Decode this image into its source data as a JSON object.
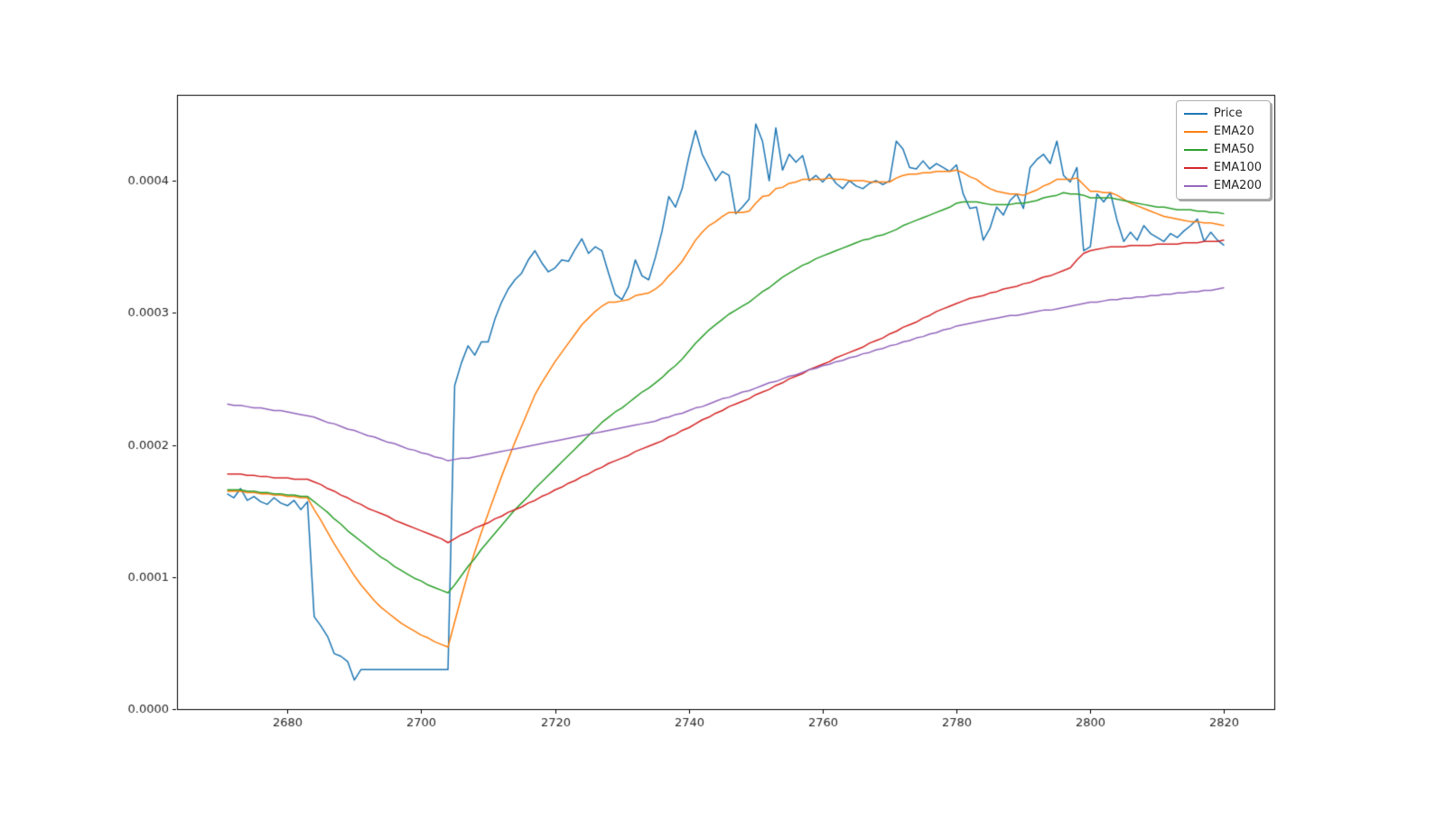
{
  "figure": {
    "background": "#ffffff",
    "frame_color": "#000000",
    "tick_label_color": "#262626"
  },
  "chart_data": {
    "type": "line",
    "title": "",
    "xlabel": "",
    "ylabel": "",
    "grid": false,
    "legend_position": "upper right",
    "xlim": [
      2663.5,
      2827.5
    ],
    "ylim": [
      0,
      0.000465
    ],
    "x_ticks": [
      2680,
      2700,
      2720,
      2740,
      2760,
      2780,
      2800,
      2820
    ],
    "y_ticks": [
      {
        "value": 0.0,
        "label": "0.0000"
      },
      {
        "value": 0.0001,
        "label": "0.0001"
      },
      {
        "value": 0.0002,
        "label": "0.0002"
      },
      {
        "value": 0.0003,
        "label": "0.0003"
      },
      {
        "value": 0.0004,
        "label": "0.0004"
      }
    ],
    "x_start": 2671,
    "x_step": 1,
    "series": [
      {
        "name": "Price",
        "color": "#1f77b4",
        "values": [
          0.000163,
          0.00016,
          0.000167,
          0.000158,
          0.000161,
          0.000157,
          0.000155,
          0.00016,
          0.000156,
          0.000154,
          0.000158,
          0.000151,
          0.000157,
          7e-05,
          6.3e-05,
          5.5e-05,
          4.2e-05,
          4e-05,
          3.6e-05,
          2.2e-05,
          3e-05,
          3e-05,
          3e-05,
          3e-05,
          3e-05,
          3e-05,
          3e-05,
          3e-05,
          3e-05,
          3e-05,
          3e-05,
          3e-05,
          3e-05,
          3e-05,
          0.000245,
          0.000262,
          0.000275,
          0.000268,
          0.000278,
          0.000278,
          0.000295,
          0.000308,
          0.000318,
          0.000325,
          0.00033,
          0.00034,
          0.000347,
          0.000338,
          0.000331,
          0.000334,
          0.00034,
          0.000339,
          0.000348,
          0.000356,
          0.000345,
          0.00035,
          0.000347,
          0.00033,
          0.000314,
          0.00031,
          0.00032,
          0.00034,
          0.000328,
          0.000325,
          0.000342,
          0.000362,
          0.000388,
          0.00038,
          0.000394,
          0.000418,
          0.000438,
          0.00042,
          0.00041,
          0.0004,
          0.000407,
          0.000404,
          0.000375,
          0.00038,
          0.000386,
          0.000443,
          0.00043,
          0.0004,
          0.00044,
          0.000408,
          0.00042,
          0.000414,
          0.000419,
          0.0004,
          0.000404,
          0.000399,
          0.000405,
          0.000398,
          0.000394,
          0.0004,
          0.000396,
          0.000394,
          0.000398,
          0.0004,
          0.000397,
          0.0004,
          0.00043,
          0.000424,
          0.00041,
          0.000409,
          0.000415,
          0.000409,
          0.000413,
          0.00041,
          0.000407,
          0.000412,
          0.00039,
          0.000379,
          0.00038,
          0.000355,
          0.000364,
          0.00038,
          0.000374,
          0.000385,
          0.00039,
          0.000379,
          0.00041,
          0.000416,
          0.00042,
          0.000413,
          0.00043,
          0.000404,
          0.000399,
          0.00041,
          0.000347,
          0.00035,
          0.00039,
          0.000384,
          0.000391,
          0.00037,
          0.000354,
          0.000361,
          0.000355,
          0.000366,
          0.00036,
          0.000357,
          0.000354,
          0.00036,
          0.000357,
          0.000362,
          0.000366,
          0.000371,
          0.000354,
          0.000361,
          0.000355,
          0.000351
        ]
      },
      {
        "name": "EMA20",
        "color": "#ff7f0e",
        "values": [
          0.000165,
          0.000165,
          0.000165,
          0.000164,
          0.000164,
          0.000163,
          0.000163,
          0.000162,
          0.000162,
          0.000161,
          0.000161,
          0.00016,
          0.00016,
          0.000151,
          0.000143,
          0.000134,
          0.000125,
          0.000117,
          0.000109,
          0.000101,
          9.4e-05,
          8.8e-05,
          8.2e-05,
          7.7e-05,
          7.3e-05,
          6.9e-05,
          6.5e-05,
          6.2e-05,
          5.9e-05,
          5.6e-05,
          5.4e-05,
          5.1e-05,
          4.9e-05,
          4.7e-05,
          6.6e-05,
          8.5e-05,
          0.000103,
          0.000119,
          0.000134,
          0.000148,
          0.000162,
          0.000176,
          0.000189,
          0.000202,
          0.000214,
          0.000226,
          0.000238,
          0.000247,
          0.000255,
          0.000263,
          0.00027,
          0.000277,
          0.000284,
          0.000291,
          0.000296,
          0.000301,
          0.000305,
          0.000308,
          0.000308,
          0.000309,
          0.00031,
          0.000313,
          0.000314,
          0.000315,
          0.000318,
          0.000322,
          0.000328,
          0.000333,
          0.000339,
          0.000347,
          0.000355,
          0.000361,
          0.000366,
          0.000369,
          0.000373,
          0.000376,
          0.000376,
          0.000376,
          0.000377,
          0.000383,
          0.000388,
          0.000389,
          0.000394,
          0.000395,
          0.000398,
          0.000399,
          0.000401,
          0.000401,
          0.000401,
          0.000401,
          0.000402,
          0.000401,
          0.000401,
          0.0004,
          0.0004,
          0.0004,
          0.000399,
          0.000399,
          0.000399,
          0.000399,
          0.000402,
          0.000404,
          0.000405,
          0.000405,
          0.000406,
          0.000406,
          0.000407,
          0.000407,
          0.000407,
          0.000408,
          0.000406,
          0.000403,
          0.000401,
          0.000397,
          0.000394,
          0.000392,
          0.000391,
          0.00039,
          0.00039,
          0.000389,
          0.000391,
          0.000393,
          0.000396,
          0.000398,
          0.000401,
          0.000401,
          0.000401,
          0.000402,
          0.000397,
          0.000392,
          0.000392,
          0.000391,
          0.000391,
          0.000389,
          0.000386,
          0.000383,
          0.000381,
          0.000379,
          0.000377,
          0.000375,
          0.000373,
          0.000372,
          0.000371,
          0.00037,
          0.000369,
          0.000369,
          0.000368,
          0.000368,
          0.000367,
          0.000366
        ]
      },
      {
        "name": "EMA50",
        "color": "#2ca02c",
        "values": [
          0.000166,
          0.000166,
          0.000166,
          0.000165,
          0.000165,
          0.000164,
          0.000164,
          0.000163,
          0.000163,
          0.000162,
          0.000162,
          0.000161,
          0.000161,
          0.000157,
          0.000153,
          0.000149,
          0.000144,
          0.00014,
          0.000135,
          0.000131,
          0.000127,
          0.000123,
          0.000119,
          0.000115,
          0.000112,
          0.000108,
          0.000105,
          0.000102,
          9.9e-05,
          9.7e-05,
          9.4e-05,
          9.2e-05,
          9e-05,
          8.8e-05,
          9.4e-05,
          0.000101,
          0.000108,
          0.000114,
          0.000121,
          0.000127,
          0.000133,
          0.000139,
          0.000145,
          0.000151,
          0.000156,
          0.000161,
          0.000167,
          0.000172,
          0.000177,
          0.000182,
          0.000187,
          0.000192,
          0.000197,
          0.000202,
          0.000207,
          0.000212,
          0.000217,
          0.000221,
          0.000225,
          0.000228,
          0.000232,
          0.000236,
          0.00024,
          0.000243,
          0.000247,
          0.000251,
          0.000256,
          0.00026,
          0.000265,
          0.000271,
          0.000277,
          0.000282,
          0.000287,
          0.000291,
          0.000295,
          0.000299,
          0.000302,
          0.000305,
          0.000308,
          0.000312,
          0.000316,
          0.000319,
          0.000323,
          0.000327,
          0.00033,
          0.000333,
          0.000336,
          0.000338,
          0.000341,
          0.000343,
          0.000345,
          0.000347,
          0.000349,
          0.000351,
          0.000353,
          0.000355,
          0.000356,
          0.000358,
          0.000359,
          0.000361,
          0.000363,
          0.000366,
          0.000368,
          0.00037,
          0.000372,
          0.000374,
          0.000376,
          0.000378,
          0.00038,
          0.000383,
          0.000384,
          0.000384,
          0.000384,
          0.000383,
          0.000382,
          0.000382,
          0.000382,
          0.000382,
          0.000383,
          0.000383,
          0.000384,
          0.000385,
          0.000387,
          0.000388,
          0.000389,
          0.000391,
          0.00039,
          0.00039,
          0.000389,
          0.000387,
          0.000387,
          0.000387,
          0.000387,
          0.000386,
          0.000385,
          0.000384,
          0.000383,
          0.000382,
          0.000381,
          0.00038,
          0.00038,
          0.000379,
          0.000378,
          0.000378,
          0.000378,
          0.000377,
          0.000377,
          0.000376,
          0.000376,
          0.000375
        ]
      },
      {
        "name": "EMA100",
        "color": "#d62728",
        "values": [
          0.000178,
          0.000178,
          0.000178,
          0.000177,
          0.000177,
          0.000176,
          0.000176,
          0.000175,
          0.000175,
          0.000175,
          0.000174,
          0.000174,
          0.000174,
          0.000172,
          0.00017,
          0.000167,
          0.000165,
          0.000162,
          0.00016,
          0.000157,
          0.000155,
          0.000152,
          0.00015,
          0.000148,
          0.000146,
          0.000143,
          0.000141,
          0.000139,
          0.000137,
          0.000135,
          0.000133,
          0.000131,
          0.000129,
          0.000126,
          0.000129,
          0.000132,
          0.000134,
          0.000137,
          0.000139,
          0.000141,
          0.000144,
          0.000146,
          0.000149,
          0.000151,
          0.000153,
          0.000156,
          0.000158,
          0.000161,
          0.000163,
          0.000166,
          0.000168,
          0.000171,
          0.000173,
          0.000176,
          0.000178,
          0.000181,
          0.000183,
          0.000186,
          0.000188,
          0.00019,
          0.000192,
          0.000195,
          0.000197,
          0.000199,
          0.000201,
          0.000203,
          0.000206,
          0.000208,
          0.000211,
          0.000213,
          0.000216,
          0.000219,
          0.000221,
          0.000224,
          0.000226,
          0.000229,
          0.000231,
          0.000233,
          0.000235,
          0.000238,
          0.00024,
          0.000242,
          0.000245,
          0.000247,
          0.00025,
          0.000252,
          0.000254,
          0.000257,
          0.000259,
          0.000261,
          0.000263,
          0.000266,
          0.000268,
          0.00027,
          0.000272,
          0.000274,
          0.000277,
          0.000279,
          0.000281,
          0.000284,
          0.000286,
          0.000289,
          0.000291,
          0.000293,
          0.000296,
          0.000298,
          0.000301,
          0.000303,
          0.000305,
          0.000307,
          0.000309,
          0.000311,
          0.000312,
          0.000313,
          0.000315,
          0.000316,
          0.000318,
          0.000319,
          0.00032,
          0.000322,
          0.000323,
          0.000325,
          0.000327,
          0.000328,
          0.00033,
          0.000332,
          0.000334,
          0.00034,
          0.000345,
          0.000347,
          0.000348,
          0.000349,
          0.00035,
          0.00035,
          0.00035,
          0.000351,
          0.000351,
          0.000351,
          0.000351,
          0.000352,
          0.000352,
          0.000352,
          0.000352,
          0.000353,
          0.000353,
          0.000353,
          0.000354,
          0.000354,
          0.000354,
          0.000355
        ]
      },
      {
        "name": "EMA200",
        "color": "#9467bd",
        "values": [
          0.000231,
          0.00023,
          0.00023,
          0.000229,
          0.000228,
          0.000228,
          0.000227,
          0.000226,
          0.000226,
          0.000225,
          0.000224,
          0.000223,
          0.000222,
          0.000221,
          0.000219,
          0.000217,
          0.000216,
          0.000214,
          0.000212,
          0.000211,
          0.000209,
          0.000207,
          0.000206,
          0.000204,
          0.000202,
          0.000201,
          0.000199,
          0.000197,
          0.000196,
          0.000194,
          0.000193,
          0.000191,
          0.00019,
          0.000188,
          0.000189,
          0.00019,
          0.00019,
          0.000191,
          0.000192,
          0.000193,
          0.000194,
          0.000195,
          0.000196,
          0.000197,
          0.000198,
          0.000199,
          0.0002,
          0.000201,
          0.000202,
          0.000203,
          0.000204,
          0.000205,
          0.000206,
          0.000207,
          0.000208,
          0.000209,
          0.00021,
          0.000211,
          0.000212,
          0.000213,
          0.000214,
          0.000215,
          0.000216,
          0.000217,
          0.000218,
          0.00022,
          0.000221,
          0.000223,
          0.000224,
          0.000226,
          0.000228,
          0.000229,
          0.000231,
          0.000233,
          0.000235,
          0.000236,
          0.000238,
          0.00024,
          0.000241,
          0.000243,
          0.000245,
          0.000247,
          0.000248,
          0.00025,
          0.000252,
          0.000253,
          0.000255,
          0.000257,
          0.000258,
          0.00026,
          0.000261,
          0.000263,
          0.000264,
          0.000266,
          0.000267,
          0.000269,
          0.00027,
          0.000272,
          0.000273,
          0.000275,
          0.000276,
          0.000278,
          0.000279,
          0.000281,
          0.000282,
          0.000284,
          0.000285,
          0.000287,
          0.000288,
          0.00029,
          0.000291,
          0.000292,
          0.000293,
          0.000294,
          0.000295,
          0.000296,
          0.000297,
          0.000298,
          0.000298,
          0.000299,
          0.0003,
          0.000301,
          0.000302,
          0.000302,
          0.000303,
          0.000304,
          0.000305,
          0.000306,
          0.000307,
          0.000308,
          0.000308,
          0.000309,
          0.00031,
          0.00031,
          0.000311,
          0.000311,
          0.000312,
          0.000312,
          0.000313,
          0.000313,
          0.000314,
          0.000314,
          0.000315,
          0.000315,
          0.000316,
          0.000316,
          0.000317,
          0.000317,
          0.000318,
          0.000319
        ]
      }
    ]
  }
}
